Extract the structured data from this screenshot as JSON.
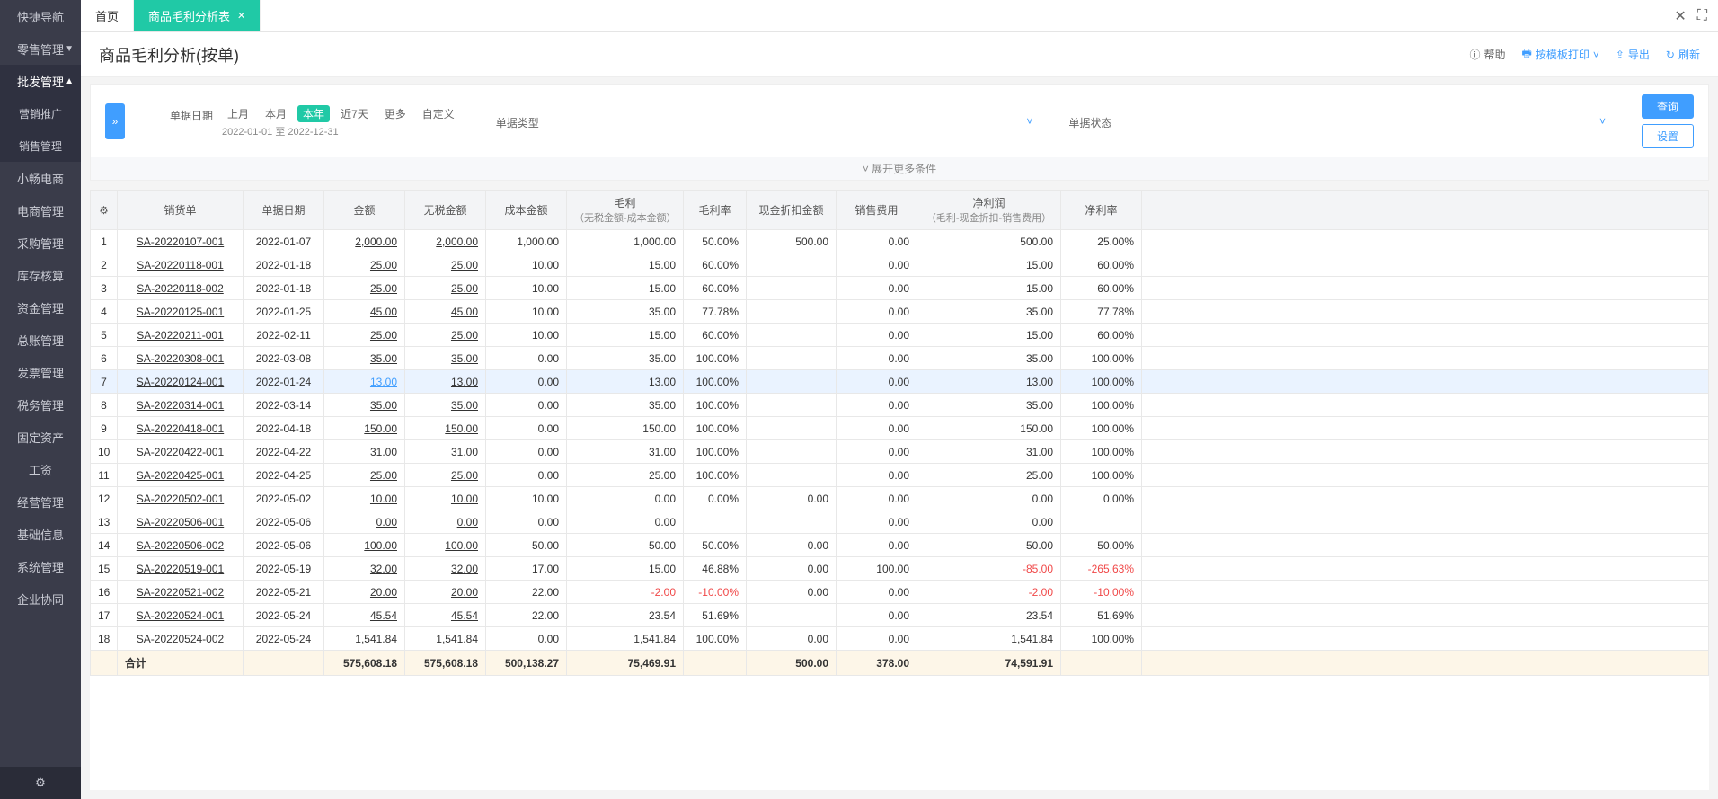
{
  "sidebar": {
    "items": [
      {
        "label": "快捷导航",
        "arrow": ""
      },
      {
        "label": "零售管理",
        "arrow": "▼"
      },
      {
        "label": "批发管理",
        "arrow": "▲",
        "expanded": true,
        "subs": [
          "营销推广",
          "销售管理"
        ]
      },
      {
        "label": "小畅电商",
        "arrow": ""
      },
      {
        "label": "电商管理",
        "arrow": ""
      },
      {
        "label": "采购管理",
        "arrow": ""
      },
      {
        "label": "库存核算",
        "arrow": ""
      },
      {
        "label": "资金管理",
        "arrow": ""
      },
      {
        "label": "总账管理",
        "arrow": ""
      },
      {
        "label": "发票管理",
        "arrow": ""
      },
      {
        "label": "税务管理",
        "arrow": ""
      },
      {
        "label": "固定资产",
        "arrow": ""
      },
      {
        "label": "工资",
        "arrow": ""
      },
      {
        "label": "经营管理",
        "arrow": ""
      },
      {
        "label": "基础信息",
        "arrow": ""
      },
      {
        "label": "系统管理",
        "arrow": ""
      },
      {
        "label": "企业协同",
        "arrow": ""
      }
    ]
  },
  "tabs": {
    "home": "首页",
    "active": "商品毛利分析表"
  },
  "page": {
    "title": "商品毛利分析(按单)"
  },
  "headActions": {
    "help": "帮助",
    "printTpl": "按模板打印",
    "export": "导出",
    "refresh": "刷新"
  },
  "filter": {
    "dateLabel": "单据日期",
    "dateTags": [
      "上月",
      "本月",
      "本年",
      "近7天",
      "更多",
      "自定义"
    ],
    "dateActiveIdx": 2,
    "dateRange": "2022-01-01 至 2022-12-31",
    "typeLabel": "单据类型",
    "statusLabel": "单据状态",
    "queryBtn": "查询",
    "settingBtn": "设置",
    "expand": "展开更多条件"
  },
  "table": {
    "headers": {
      "bill": "销货单",
      "date": "单据日期",
      "amount": "金额",
      "noTax": "无税金额",
      "cost": "成本金额",
      "gross": "毛利",
      "grossSub": "（无税金额-成本金额）",
      "grossRate": "毛利率",
      "cashDisc": "现金折扣金额",
      "saleFee": "销售费用",
      "net": "净利润",
      "netSub": "（毛利-现金折扣-销售费用）",
      "netRate": "净利率"
    },
    "rows": [
      {
        "idx": 1,
        "bill": "SA-20220107-001",
        "date": "2022-01-07",
        "amount": "2,000.00",
        "noTax": "2,000.00",
        "cost": "1,000.00",
        "gross": "1,000.00",
        "grossRate": "50.00%",
        "cashDisc": "500.00",
        "saleFee": "0.00",
        "net": "500.00",
        "netRate": "25.00%"
      },
      {
        "idx": 2,
        "bill": "SA-20220118-001",
        "date": "2022-01-18",
        "amount": "25.00",
        "noTax": "25.00",
        "cost": "10.00",
        "gross": "15.00",
        "grossRate": "60.00%",
        "cashDisc": "",
        "saleFee": "0.00",
        "net": "15.00",
        "netRate": "60.00%"
      },
      {
        "idx": 3,
        "bill": "SA-20220118-002",
        "date": "2022-01-18",
        "amount": "25.00",
        "noTax": "25.00",
        "cost": "10.00",
        "gross": "15.00",
        "grossRate": "60.00%",
        "cashDisc": "",
        "saleFee": "0.00",
        "net": "15.00",
        "netRate": "60.00%"
      },
      {
        "idx": 4,
        "bill": "SA-20220125-001",
        "date": "2022-01-25",
        "amount": "45.00",
        "noTax": "45.00",
        "cost": "10.00",
        "gross": "35.00",
        "grossRate": "77.78%",
        "cashDisc": "",
        "saleFee": "0.00",
        "net": "35.00",
        "netRate": "77.78%"
      },
      {
        "idx": 5,
        "bill": "SA-20220211-001",
        "date": "2022-02-11",
        "amount": "25.00",
        "noTax": "25.00",
        "cost": "10.00",
        "gross": "15.00",
        "grossRate": "60.00%",
        "cashDisc": "",
        "saleFee": "0.00",
        "net": "15.00",
        "netRate": "60.00%"
      },
      {
        "idx": 6,
        "bill": "SA-20220308-001",
        "date": "2022-03-08",
        "amount": "35.00",
        "noTax": "35.00",
        "cost": "0.00",
        "gross": "35.00",
        "grossRate": "100.00%",
        "cashDisc": "",
        "saleFee": "0.00",
        "net": "35.00",
        "netRate": "100.00%"
      },
      {
        "idx": 7,
        "bill": "SA-20220124-001",
        "date": "2022-01-24",
        "amount": "13.00",
        "noTax": "13.00",
        "cost": "0.00",
        "gross": "13.00",
        "grossRate": "100.00%",
        "cashDisc": "",
        "saleFee": "0.00",
        "net": "13.00",
        "netRate": "100.00%",
        "hl": true,
        "blueAmt": true
      },
      {
        "idx": 8,
        "bill": "SA-20220314-001",
        "date": "2022-03-14",
        "amount": "35.00",
        "noTax": "35.00",
        "cost": "0.00",
        "gross": "35.00",
        "grossRate": "100.00%",
        "cashDisc": "",
        "saleFee": "0.00",
        "net": "35.00",
        "netRate": "100.00%"
      },
      {
        "idx": 9,
        "bill": "SA-20220418-001",
        "date": "2022-04-18",
        "amount": "150.00",
        "noTax": "150.00",
        "cost": "0.00",
        "gross": "150.00",
        "grossRate": "100.00%",
        "cashDisc": "",
        "saleFee": "0.00",
        "net": "150.00",
        "netRate": "100.00%"
      },
      {
        "idx": 10,
        "bill": "SA-20220422-001",
        "date": "2022-04-22",
        "amount": "31.00",
        "noTax": "31.00",
        "cost": "0.00",
        "gross": "31.00",
        "grossRate": "100.00%",
        "cashDisc": "",
        "saleFee": "0.00",
        "net": "31.00",
        "netRate": "100.00%"
      },
      {
        "idx": 11,
        "bill": "SA-20220425-001",
        "date": "2022-04-25",
        "amount": "25.00",
        "noTax": "25.00",
        "cost": "0.00",
        "gross": "25.00",
        "grossRate": "100.00%",
        "cashDisc": "",
        "saleFee": "0.00",
        "net": "25.00",
        "netRate": "100.00%"
      },
      {
        "idx": 12,
        "bill": "SA-20220502-001",
        "date": "2022-05-02",
        "amount": "10.00",
        "noTax": "10.00",
        "cost": "10.00",
        "gross": "0.00",
        "grossRate": "0.00%",
        "cashDisc": "0.00",
        "saleFee": "0.00",
        "net": "0.00",
        "netRate": "0.00%"
      },
      {
        "idx": 13,
        "bill": "SA-20220506-001",
        "date": "2022-05-06",
        "amount": "0.00",
        "noTax": "0.00",
        "cost": "0.00",
        "gross": "0.00",
        "grossRate": "",
        "cashDisc": "",
        "saleFee": "0.00",
        "net": "0.00",
        "netRate": ""
      },
      {
        "idx": 14,
        "bill": "SA-20220506-002",
        "date": "2022-05-06",
        "amount": "100.00",
        "noTax": "100.00",
        "cost": "50.00",
        "gross": "50.00",
        "grossRate": "50.00%",
        "cashDisc": "0.00",
        "saleFee": "0.00",
        "net": "50.00",
        "netRate": "50.00%"
      },
      {
        "idx": 15,
        "bill": "SA-20220519-001",
        "date": "2022-05-19",
        "amount": "32.00",
        "noTax": "32.00",
        "cost": "17.00",
        "gross": "15.00",
        "grossRate": "46.88%",
        "cashDisc": "0.00",
        "saleFee": "100.00",
        "net": "-85.00",
        "netRate": "-265.63%",
        "negNet": true
      },
      {
        "idx": 16,
        "bill": "SA-20220521-002",
        "date": "2022-05-21",
        "amount": "20.00",
        "noTax": "20.00",
        "cost": "22.00",
        "gross": "-2.00",
        "grossRate": "-10.00%",
        "cashDisc": "0.00",
        "saleFee": "0.00",
        "net": "-2.00",
        "netRate": "-10.00%",
        "negGross": true,
        "negNet": true
      },
      {
        "idx": 17,
        "bill": "SA-20220524-001",
        "date": "2022-05-24",
        "amount": "45.54",
        "noTax": "45.54",
        "cost": "22.00",
        "gross": "23.54",
        "grossRate": "51.69%",
        "cashDisc": "",
        "saleFee": "0.00",
        "net": "23.54",
        "netRate": "51.69%"
      },
      {
        "idx": 18,
        "bill": "SA-20220524-002",
        "date": "2022-05-24",
        "amount": "1,541.84",
        "noTax": "1,541.84",
        "cost": "0.00",
        "gross": "1,541.84",
        "grossRate": "100.00%",
        "cashDisc": "0.00",
        "saleFee": "0.00",
        "net": "1,541.84",
        "netRate": "100.00%"
      }
    ],
    "total": {
      "label": "合计",
      "amount": "575,608.18",
      "noTax": "575,608.18",
      "cost": "500,138.27",
      "gross": "75,469.91",
      "cashDisc": "500.00",
      "saleFee": "378.00",
      "net": "74,591.91"
    }
  },
  "colors": {
    "sidebar": "#3a3c4a",
    "accent": "#20c9a6",
    "primary": "#409eff",
    "neg": "#f04848",
    "totalBg": "#fdf6e8",
    "hlBg": "#eaf3ff"
  }
}
